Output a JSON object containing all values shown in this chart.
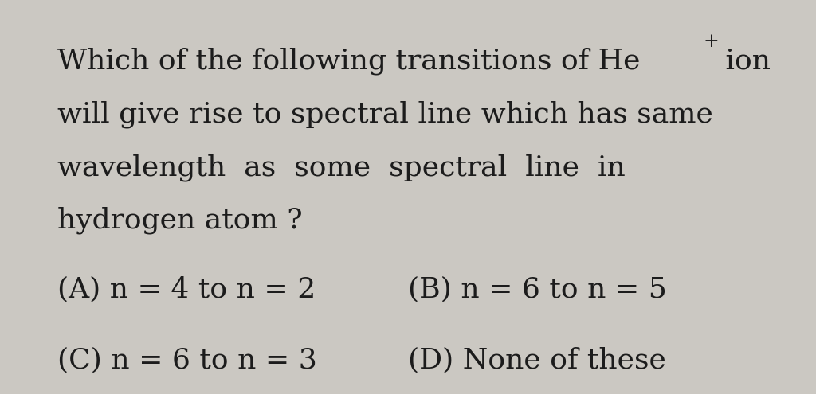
{
  "background_color": "#cbc8c2",
  "text_color": "#1c1c1c",
  "line1_main": "Which of the following transitions of He",
  "line1_sup": "+",
  "line1_end": " ion",
  "line2": "will give rise to spectral line which has same",
  "line3": "wavelength  as  some  spectral  line  in",
  "line4": "hydrogen atom ?",
  "option_A": "(A) n = 4 to n = 2",
  "option_B": "(B) n = 6 to n = 5",
  "option_C": "(C) n = 6 to n = 3",
  "option_D": "(D) None of these",
  "font_size_q": 26,
  "font_size_opt": 26,
  "font_size_sup": 17
}
